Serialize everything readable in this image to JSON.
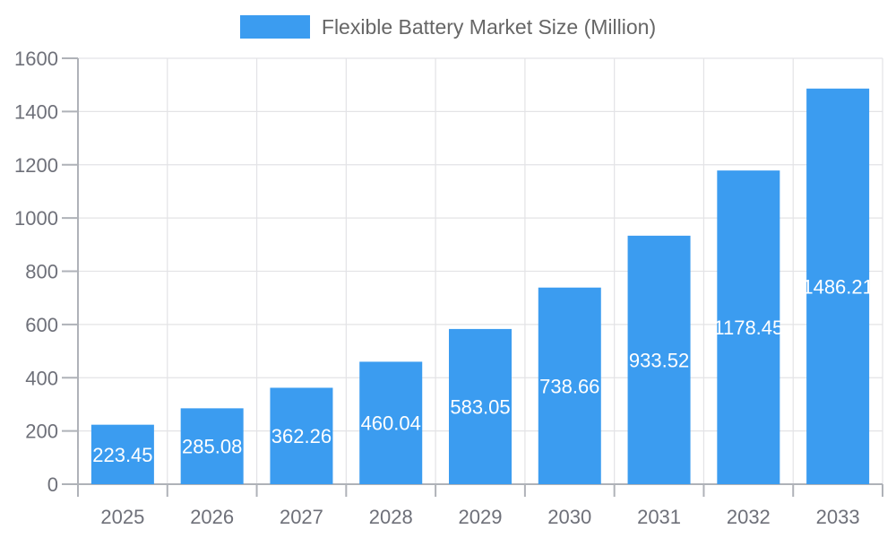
{
  "chart_data": {
    "type": "bar",
    "title": "Flexible Battery Market Size (Million)",
    "categories": [
      "2025",
      "2026",
      "2027",
      "2028",
      "2029",
      "2030",
      "2031",
      "2032",
      "2033"
    ],
    "series": [
      {
        "name": "Flexible Battery Market Size (Million)",
        "values": [
          223.45,
          285.08,
          362.26,
          460.04,
          583.05,
          738.66,
          933.52,
          1178.45,
          1486.21
        ]
      }
    ],
    "value_labels": [
      "223.45",
      "285.08",
      "362.26",
      "460.04",
      "583.05",
      "738.66",
      "933.52",
      "1178.45",
      "1486.21"
    ],
    "xlabel": "",
    "ylabel": "",
    "ylim": [
      0,
      1600
    ],
    "ytick_step": 200,
    "ytick_labels": [
      "0",
      "200",
      "400",
      "600",
      "800",
      "1000",
      "1200",
      "1400",
      "1600"
    ],
    "grid": true,
    "legend_position": "top-center",
    "value_label_position": "inside-center",
    "colors": {
      "bar": "#3B9CF0",
      "value_label": "#FFFFFF",
      "axis_label": "#6E7079",
      "axis_line": "#AFB2B8",
      "gridline": "#E3E3E6",
      "legend_text": "#666666",
      "background": "#FFFFFF"
    }
  }
}
